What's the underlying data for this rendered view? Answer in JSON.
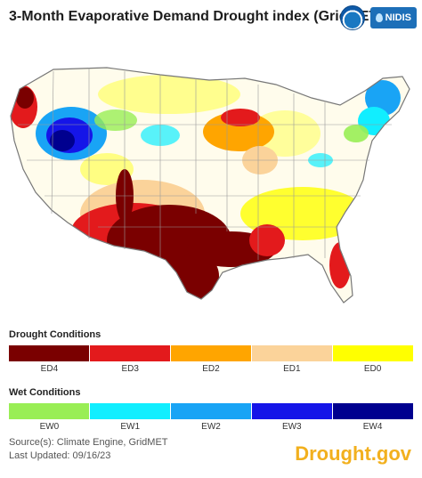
{
  "title": "3-Month Evaporative Demand Drought index (GridMET)",
  "logos": {
    "noaa": "NOAA",
    "nidis": "NIDIS"
  },
  "drought": {
    "heading": "Drought Conditions",
    "classes": [
      {
        "label": "ED4",
        "color": "#7a0000"
      },
      {
        "label": "ED3",
        "color": "#e31a1c"
      },
      {
        "label": "ED2",
        "color": "#ffa500"
      },
      {
        "label": "ED1",
        "color": "#fbd39a"
      },
      {
        "label": "ED0",
        "color": "#ffff00"
      }
    ]
  },
  "wet": {
    "heading": "Wet Conditions",
    "classes": [
      {
        "label": "EW0",
        "color": "#99ee55"
      },
      {
        "label": "EW1",
        "color": "#11eeff"
      },
      {
        "label": "EW2",
        "color": "#19a4f5"
      },
      {
        "label": "EW3",
        "color": "#1515e8"
      },
      {
        "label": "EW4",
        "color": "#00008f"
      }
    ]
  },
  "source": "Source(s): Climate Engine, GridMET",
  "updated": "Last Updated: 09/16/23",
  "brand": "Drought.gov"
}
